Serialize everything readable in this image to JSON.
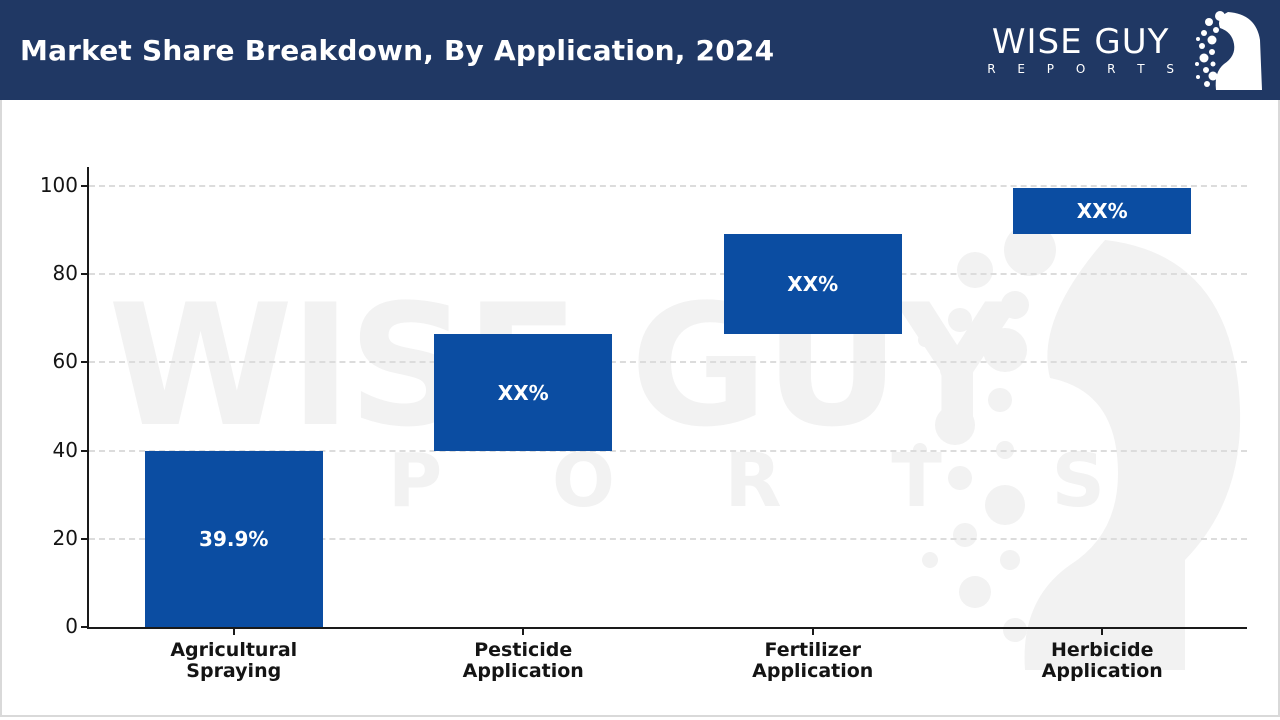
{
  "header": {
    "title": "Market Share Breakdown, By Application, 2024",
    "bg_color": "#203864",
    "logo": {
      "line1": "WISE GUY",
      "line2": "R E P O R T S"
    }
  },
  "watermark": {
    "line1": "WISE GUY",
    "line2": "P O R T S"
  },
  "chart_data": {
    "type": "bar",
    "subtype": "waterfall",
    "title": "Market Share Breakdown, By Application, 2024",
    "categories": [
      "Agricultural Spraying",
      "Pesticide Application",
      "Fertilizer Application",
      "Herbicide Application"
    ],
    "bars": [
      {
        "category": "Agricultural Spraying",
        "start": 0,
        "end": 39.9,
        "value": 39.9,
        "label": "39.9%"
      },
      {
        "category": "Pesticide Application",
        "start": 39.9,
        "end": 66.4,
        "value": 26.5,
        "label": "XX%"
      },
      {
        "category": "Fertilizer Application",
        "start": 66.4,
        "end": 89.1,
        "value": 22.7,
        "label": "XX%"
      },
      {
        "category": "Herbicide Application",
        "start": 89.1,
        "end": 99.6,
        "value": 10.5,
        "label": "XX%"
      }
    ],
    "xlabel": "",
    "ylabel": "",
    "yticks": [
      0,
      20,
      40,
      60,
      80,
      100
    ],
    "ylim": [
      0,
      104
    ],
    "grid": "horizontal-dashed",
    "legend": "none",
    "bar_color": "#0b4da2",
    "bar_label_color": "#ffffff",
    "axis_color": "#1a1a1a",
    "grid_color": "#dcdcdc",
    "tick_label_color": "#141414"
  }
}
